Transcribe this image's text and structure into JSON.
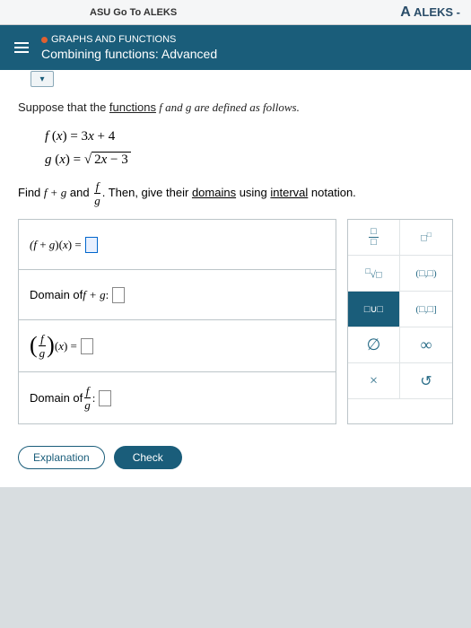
{
  "colors": {
    "header_bg": "#1a5d7a",
    "accent": "#e06030",
    "body_bg": "#d8dde0",
    "panel_bg": "#ffffff",
    "border": "#bcc5c9"
  },
  "top_bar": {
    "left_text": "ASU Go To ALEKS",
    "right_brand": "ALEKS -"
  },
  "header": {
    "topic": "GRAPHS AND FUNCTIONS",
    "title": "Combining functions: Advanced"
  },
  "problem": {
    "prompt_pre": "Suppose that the ",
    "prompt_link": "functions",
    "prompt_mid": " f and g are defined as follows.",
    "eq_f": "f (x) = 3x + 4",
    "eq_g_lhs": "g (x) = ",
    "eq_g_rad": "2x − 3",
    "instruction_pre": "Find ",
    "instruction_fg": "f + g",
    "instruction_and": " and ",
    "instruction_post": ". Then, give their ",
    "domains_word": "domains",
    "using_word": " using ",
    "interval_word": "interval",
    "notation_word": " notation."
  },
  "answers": {
    "row1_lhs": "(f + g)(x) = ",
    "row2_label_pre": "Domain of ",
    "row2_label_fg": "f + g",
    "row2_colon": " : ",
    "row3_mid": "(x) = ",
    "row4_label_pre": "Domain of ",
    "row4_colon": " : "
  },
  "toolpad": {
    "buttons": [
      {
        "name": "fraction-tool",
        "type": "fraction"
      },
      {
        "name": "exponent-tool",
        "type": "exponent"
      },
      {
        "name": "nth-root-tool",
        "type": "nthroot"
      },
      {
        "name": "open-interval-tool",
        "label": "(□,□)"
      },
      {
        "name": "union-tool",
        "label": "□∪□",
        "selected": true
      },
      {
        "name": "half-open-tool",
        "label": "(□,□]"
      },
      {
        "name": "empty-set-tool",
        "label": "∅"
      },
      {
        "name": "infinity-tool",
        "label": "∞"
      },
      {
        "name": "times-tool",
        "label": "×"
      },
      {
        "name": "undo-tool",
        "label": "↺"
      }
    ]
  },
  "actions": {
    "explanation": "Explanation",
    "check": "Check"
  }
}
